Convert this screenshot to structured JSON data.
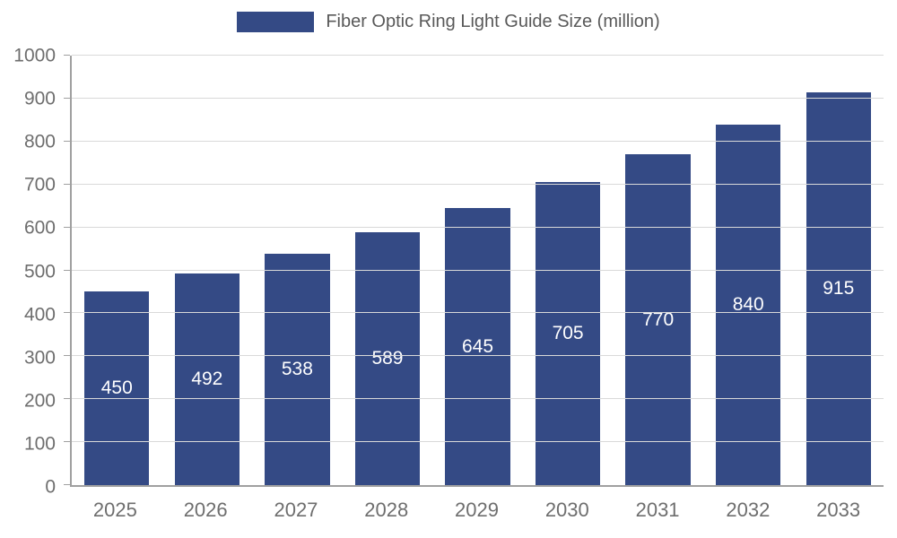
{
  "chart_data": {
    "type": "bar",
    "title": "Fiber Optic Ring Light Guide Size (million)",
    "categories": [
      "2025",
      "2026",
      "2027",
      "2028",
      "2029",
      "2030",
      "2031",
      "2032",
      "2033"
    ],
    "values": [
      450,
      492,
      538,
      589,
      645,
      705,
      770,
      840,
      915
    ],
    "xlabel": "",
    "ylabel": "",
    "ylim": [
      0,
      1000
    ],
    "ytick_step": 100,
    "grid": true,
    "legend_position": "top",
    "colors": {
      "bar": "#344a85",
      "value_label": "#ffffff",
      "axis_text": "#6e6e6e",
      "legend_text": "#595959",
      "gridline": "#d9d9d9",
      "axis_line": "#a0a0a0"
    }
  }
}
